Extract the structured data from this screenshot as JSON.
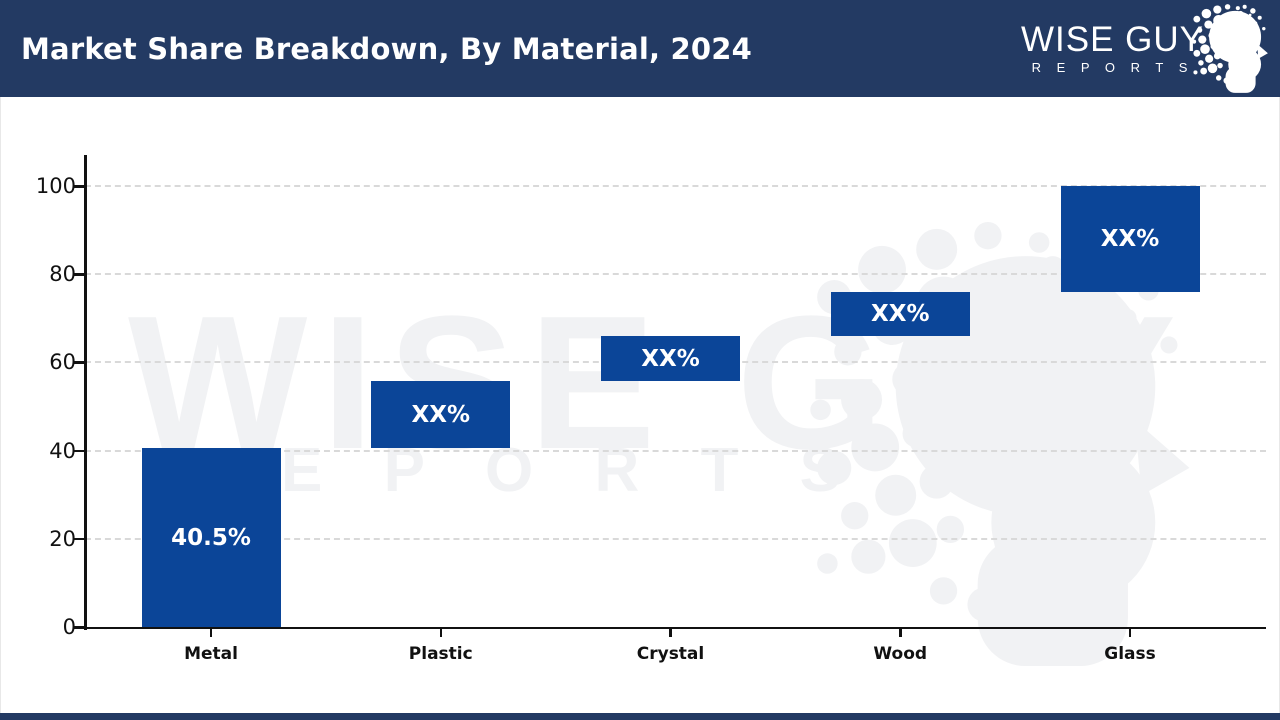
{
  "header": {
    "title": "Market Share Breakdown, By Material, 2024",
    "logo": {
      "line1": "WISE GUY",
      "line2": "R E P O R T S"
    }
  },
  "watermark": {
    "line1": "WISE GUY",
    "line2": "R E P O R T S"
  },
  "colors": {
    "header_bg": "#233a63",
    "footer_bg": "#233a63",
    "bar": "#0b4598",
    "bar_label": "#ffffff",
    "grid": "#d9d9d9",
    "axis": "#111111",
    "watermark": "#f1f2f4"
  },
  "chart_data": {
    "type": "bar",
    "subtype": "waterfall",
    "title": "Market Share Breakdown, By Material, 2024",
    "categories": [
      "Metal",
      "Plastic",
      "Crystal",
      "Wood",
      "Glass"
    ],
    "segments": [
      {
        "category": "Metal",
        "start": 0,
        "end": 40.5,
        "label": "40.5%"
      },
      {
        "category": "Plastic",
        "start": 40.5,
        "end": 55.8,
        "label": "XX%"
      },
      {
        "category": "Crystal",
        "start": 55.8,
        "end": 65.9,
        "label": "XX%"
      },
      {
        "category": "Wood",
        "start": 65.9,
        "end": 76.0,
        "label": "XX%"
      },
      {
        "category": "Glass",
        "start": 76.0,
        "end": 100.0,
        "label": "XX%"
      }
    ],
    "y_ticks": [
      0,
      20,
      40,
      60,
      80,
      100
    ],
    "ylim": [
      0,
      100
    ],
    "xlabel": "",
    "ylabel": "",
    "grid": "horizontal-dashed",
    "legend": "none"
  }
}
